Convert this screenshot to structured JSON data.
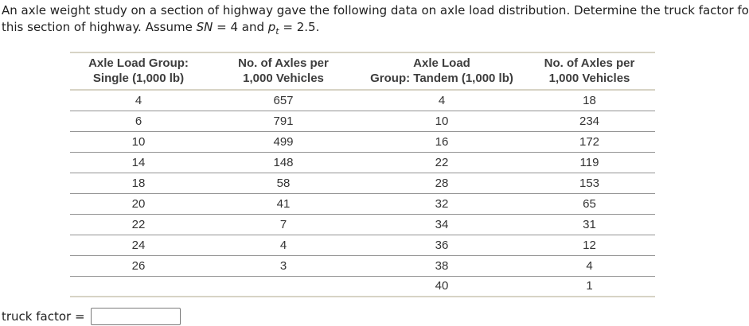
{
  "problem": {
    "line1": "An axle weight study on a section of highway gave the following data on axle load distribution. Determine the truck factor for",
    "line2": {
      "part1": "this section of highway. Assume ",
      "var1": "SN",
      "part2": " = 4 and ",
      "var2": "p",
      "var2_sub": "t",
      "part3": " = 2.5."
    }
  },
  "table": {
    "headers": [
      {
        "line1": "Axle Load Group:",
        "line2": "Single (1,000 lb)"
      },
      {
        "line1": "No. of Axles per",
        "line2": "1,000 Vehicles"
      },
      {
        "line1": "Axle Load",
        "line2": "Group: Tandem (1,000 lb)"
      },
      {
        "line1": "No. of Axles per",
        "line2": "1,000 Vehicles"
      }
    ],
    "rows": [
      [
        "4",
        "657",
        "4",
        "18"
      ],
      [
        "6",
        "791",
        "10",
        "234"
      ],
      [
        "10",
        "499",
        "16",
        "172"
      ],
      [
        "14",
        "148",
        "22",
        "119"
      ],
      [
        "18",
        "58",
        "28",
        "153"
      ],
      [
        "20",
        "41",
        "32",
        "65"
      ],
      [
        "22",
        "7",
        "34",
        "31"
      ],
      [
        "24",
        "4",
        "36",
        "12"
      ],
      [
        "26",
        "3",
        "38",
        "4"
      ],
      [
        "",
        "",
        "40",
        "1"
      ]
    ]
  },
  "answer": {
    "label": "truck factor =",
    "input_value": ""
  },
  "colors": {
    "accent_line": "#d7d3c5",
    "row_line": "#939393",
    "header_text": "#3d3d3d",
    "body_text": "#212121"
  }
}
